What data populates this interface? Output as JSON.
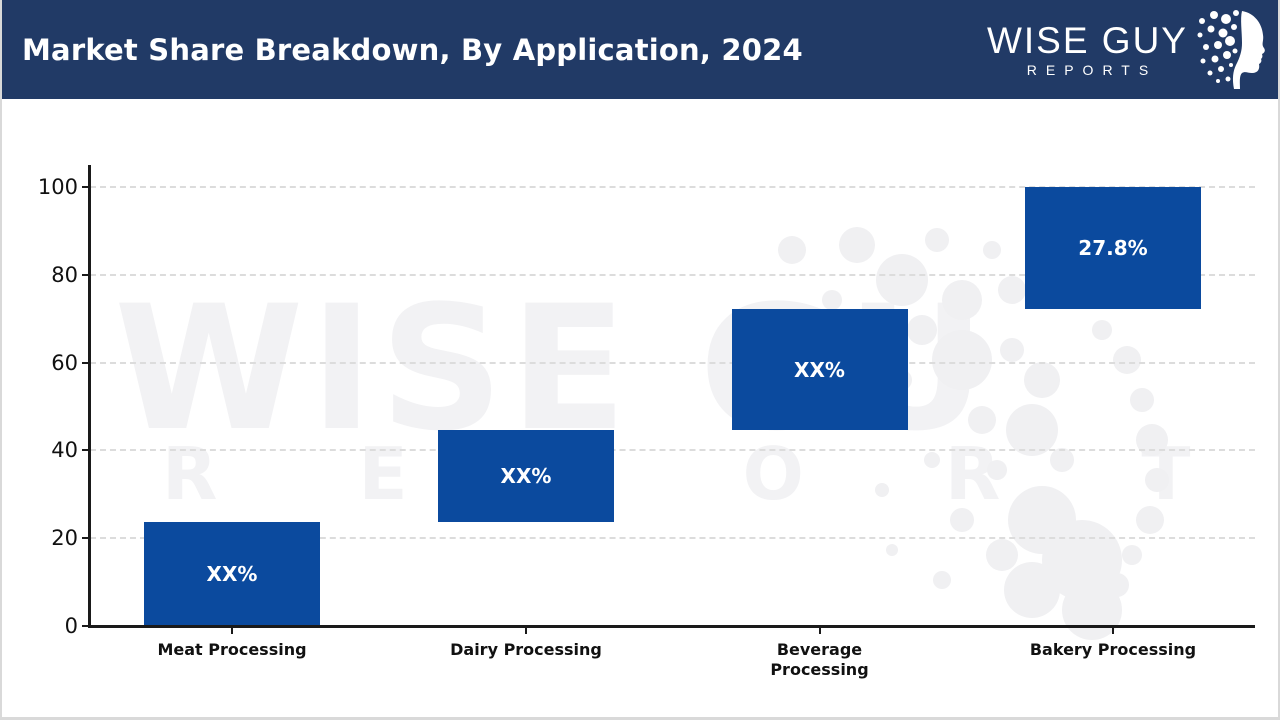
{
  "header": {
    "title": "Market Share Breakdown, By Application, 2024",
    "logo": {
      "line1": "WISE GUY",
      "line2": "REPORTS"
    }
  },
  "watermark": {
    "line1": "WISE GU",
    "line2": "REPORTS"
  },
  "chart_data": {
    "type": "bar",
    "subtype": "floating-waterfall",
    "title": "Market Share Breakdown, By Application, 2024",
    "xlabel": "",
    "ylabel": "",
    "categories": [
      "Meat Processing",
      "Dairy Processing",
      "Beverage\nProcessing",
      "Bakery Processing"
    ],
    "segments": [
      {
        "category": "Meat Processing",
        "start": 0,
        "end": 23.7,
        "label": "XX%"
      },
      {
        "category": "Dairy Processing",
        "start": 23.7,
        "end": 44.6,
        "label": "XX%"
      },
      {
        "category": "Beverage Processing",
        "start": 44.6,
        "end": 72.2,
        "label": "XX%"
      },
      {
        "category": "Bakery Processing",
        "start": 72.2,
        "end": 100,
        "label": "27.8%"
      }
    ],
    "yticks": [
      0,
      20,
      40,
      60,
      80,
      100
    ],
    "ylim": [
      0,
      105
    ],
    "grid": "horizontal-dashed",
    "legend": "none",
    "bar_color": "#0b4a9e",
    "bar_label_color": "#ffffff"
  },
  "colors": {
    "header_bg": "#213a66",
    "bar": "#0b4a9e",
    "grid": "#dcdcdc",
    "axis": "#1a1a1a",
    "watermark": "#f2f2f4",
    "border": "#d9d9d9"
  }
}
